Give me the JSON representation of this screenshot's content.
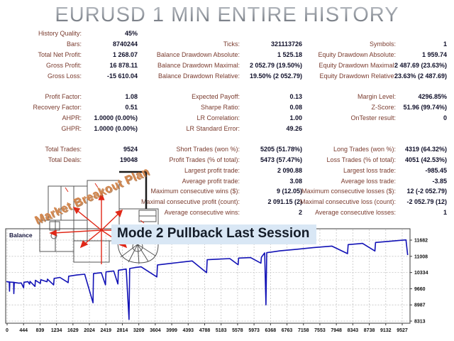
{
  "title": "EURUSD 1 MIN ENTIRE HISTORY",
  "watermark": {
    "label": "Market Breakout Plan"
  },
  "note": {
    "text": "Mode 2 Pullback Last Session"
  },
  "colors": {
    "stat_label": "#7a3b2e",
    "stat_value": "#10102a",
    "note_bg": "#d9e7f5",
    "watermark_text": "#d4874e",
    "balance_line": "#1212b6"
  },
  "stats": {
    "rows": [
      [
        "History Quality:",
        "45%",
        "",
        "",
        "",
        ""
      ],
      [
        "Bars:",
        "8740244",
        "Ticks:",
        "321113726",
        "Symbols:",
        "1"
      ],
      [
        "Total Net Profit:",
        "1 268.07",
        "Balance Drawdown Absolute:",
        "1 525.18",
        "Equity Drawdown Absolute:",
        "1 959.74"
      ],
      [
        "Gross Profit:",
        "16 878.11",
        "Balance Drawdown Maximal:",
        "2 052.79 (19.50%)",
        "Equity Drawdown Maximal:",
        "2 487.69 (23.63%)"
      ],
      [
        "Gross Loss:",
        "-15 610.04",
        "Balance Drawdown Relative:",
        "19.50% (2 052.79)",
        "Equity Drawdown Relative:",
        "23.63% (2 487.69)"
      ],
      [
        "",
        "",
        "",
        "",
        "",
        ""
      ],
      [
        "Profit Factor:",
        "1.08",
        "Expected Payoff:",
        "0.13",
        "Margin Level:",
        "4296.85%"
      ],
      [
        "Recovery Factor:",
        "0.51",
        "Sharpe Ratio:",
        "0.08",
        "Z-Score:",
        "51.96 (99.74%)"
      ],
      [
        "AHPR:",
        "1.0000 (0.00%)",
        "LR Correlation:",
        "1.00",
        "OnTester result:",
        "0"
      ],
      [
        "GHPR:",
        "1.0000 (0.00%)",
        "LR Standard Error:",
        "49.26",
        "",
        ""
      ],
      [
        "",
        "",
        "",
        "",
        "",
        ""
      ],
      [
        "Total Trades:",
        "9524",
        "Short Trades (won %):",
        "5205 (51.78%)",
        "Long Trades (won %):",
        "4319 (64.32%)"
      ],
      [
        "Total Deals:",
        "19048",
        "Profit Trades (% of total):",
        "5473 (57.47%)",
        "Loss Trades (% of total):",
        "4051 (42.53%)"
      ],
      [
        "",
        "",
        "Largest profit trade:",
        "2 090.88",
        "Largest loss trade:",
        "-985.45"
      ],
      [
        "",
        "",
        "Average profit trade:",
        "3.08",
        "Average loss trade:",
        "-3.85"
      ],
      [
        "",
        "",
        "Maximum consecutive wins ($):",
        "9 (12.05)",
        "Maximum consecutive losses ($):",
        "12 (-2 052.79)"
      ],
      [
        "",
        "",
        "Maximal consecutive profit (count):",
        "2 091.15 (2)",
        "Maximal consecutive loss (count):",
        "-2 052.79 (12)"
      ],
      [
        "",
        "",
        "Average consecutive wins:",
        "2",
        "Average consecutive losses:",
        "1"
      ]
    ]
  },
  "chart_data": {
    "type": "line",
    "title": "Balance",
    "legend_position": "top-left-inside",
    "grid": true,
    "line_color": "#1212b6",
    "x_range": [
      0,
      9720
    ],
    "y_range": [
      8313,
      11682
    ],
    "x_tick_labels": [
      "0",
      "444",
      "839",
      "1234",
      "1629",
      "2024",
      "2419",
      "2814",
      "3209",
      "3604",
      "3999",
      "4393",
      "4788",
      "5183",
      "5578",
      "5973",
      "6368",
      "6763",
      "7158",
      "7553",
      "7948",
      "8343",
      "8738",
      "9132",
      "9527"
    ],
    "y_tick_labels": [
      11682,
      11008,
      10334,
      9660,
      8987,
      8313
    ],
    "series": [
      {
        "name": "Balance",
        "points": [
          [
            0,
            9960
          ],
          [
            40,
            9945
          ],
          [
            70,
            9945
          ],
          [
            75,
            9560
          ],
          [
            82,
            9940
          ],
          [
            140,
            9930
          ],
          [
            175,
            9930
          ],
          [
            180,
            9460
          ],
          [
            190,
            9920
          ],
          [
            300,
            9890
          ],
          [
            360,
            9900
          ],
          [
            415,
            9700
          ],
          [
            425,
            9930
          ],
          [
            520,
            9955
          ],
          [
            560,
            9850
          ],
          [
            570,
            9965
          ],
          [
            690,
            9755
          ],
          [
            700,
            10010
          ],
          [
            820,
            9880
          ],
          [
            830,
            10035
          ],
          [
            980,
            9950
          ],
          [
            990,
            10060
          ],
          [
            1140,
            9820
          ],
          [
            1152,
            10090
          ],
          [
            1290,
            10130
          ],
          [
            1490,
            9915
          ],
          [
            1502,
            10180
          ],
          [
            1700,
            10230
          ],
          [
            1890,
            10265
          ],
          [
            2090,
            9075
          ],
          [
            2102,
            10290
          ],
          [
            2290,
            10330
          ],
          [
            2390,
            9820
          ],
          [
            2402,
            10360
          ],
          [
            2590,
            10400
          ],
          [
            2690,
            9860
          ],
          [
            2702,
            10430
          ],
          [
            2890,
            10480
          ],
          [
            2958,
            8380
          ],
          [
            2975,
            10500
          ],
          [
            3100,
            10540
          ],
          [
            3250,
            10570
          ],
          [
            3630,
            10150
          ],
          [
            3645,
            10650
          ],
          [
            3900,
            10700
          ],
          [
            4150,
            10750
          ],
          [
            4480,
            10815
          ],
          [
            4830,
            10330
          ],
          [
            4845,
            10865
          ],
          [
            5100,
            10890
          ],
          [
            5390,
            10915
          ],
          [
            5590,
            10660
          ],
          [
            5602,
            10935
          ],
          [
            5890,
            10955
          ],
          [
            6140,
            10725
          ],
          [
            6152,
            10970
          ],
          [
            6230,
            11150
          ],
          [
            6262,
            8990
          ],
          [
            6280,
            11160
          ],
          [
            6600,
            11235
          ],
          [
            7000,
            11300
          ],
          [
            7400,
            11370
          ],
          [
            7850,
            11435
          ],
          [
            8230,
            11120
          ],
          [
            8245,
            11495
          ],
          [
            8590,
            11545
          ],
          [
            8890,
            11230
          ],
          [
            8905,
            11585
          ],
          [
            9190,
            11625
          ],
          [
            9480,
            11670
          ],
          [
            9640,
            11690
          ],
          [
            9680,
            11060
          ]
        ]
      }
    ]
  }
}
